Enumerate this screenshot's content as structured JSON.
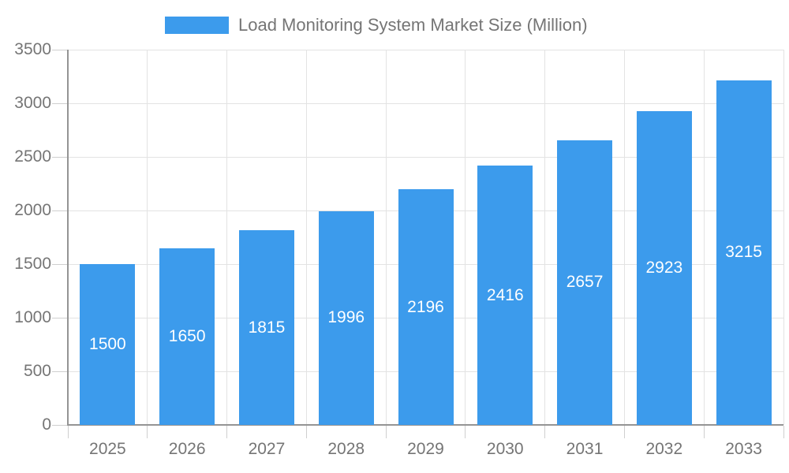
{
  "chart_data": {
    "type": "bar",
    "title": "Load Monitoring System Market Size (Million)",
    "legend": [
      "Load Monitoring System Market Size (Million)"
    ],
    "legend_position": "top",
    "categories": [
      "2025",
      "2026",
      "2027",
      "2028",
      "2029",
      "2030",
      "2031",
      "2032",
      "2033"
    ],
    "values": [
      1500,
      1650,
      1815,
      1996,
      2196,
      2416,
      2657,
      2923,
      3215
    ],
    "xlabel": "",
    "ylabel": "",
    "ylim": [
      0,
      3500
    ],
    "ytick_step": 500,
    "y_ticks": [
      0,
      500,
      1000,
      1500,
      2000,
      2500,
      3000,
      3500
    ],
    "grid": true,
    "value_labels": "inside-center",
    "colors": {
      "bar": "#3c9bec",
      "value_label": "#ffffff",
      "grid": "#e3e3e3",
      "tick": "#cfcfcf",
      "axis": "#949494",
      "text": "#757575",
      "background": "#ffffff"
    }
  }
}
